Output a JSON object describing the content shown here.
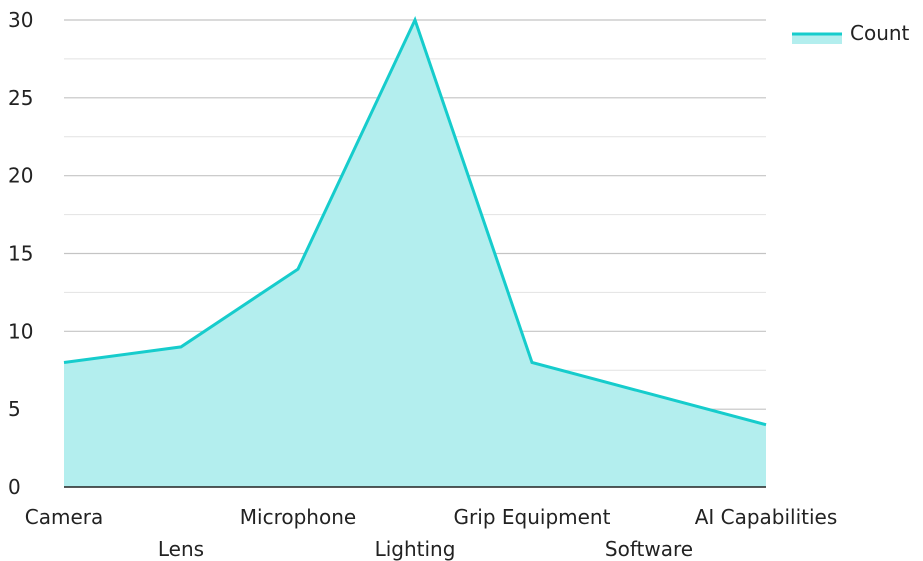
{
  "chart_data": {
    "type": "area",
    "categories": [
      "Camera",
      "Lens",
      "Microphone",
      "Lighting",
      "Grip Equipment",
      "Software",
      "AI Capabilities"
    ],
    "series": [
      {
        "name": "Count",
        "values": [
          8,
          9,
          14,
          30,
          8,
          6,
          4
        ]
      }
    ],
    "yticks": [
      0,
      5,
      10,
      15,
      20,
      25,
      30
    ],
    "ylim": [
      0,
      30
    ],
    "grid": true,
    "legend_position": "top-right",
    "colors": {
      "line": "#16cccc",
      "fill": "#b3eeee",
      "grid": "#c8c8c8",
      "axis": "#222222"
    }
  }
}
